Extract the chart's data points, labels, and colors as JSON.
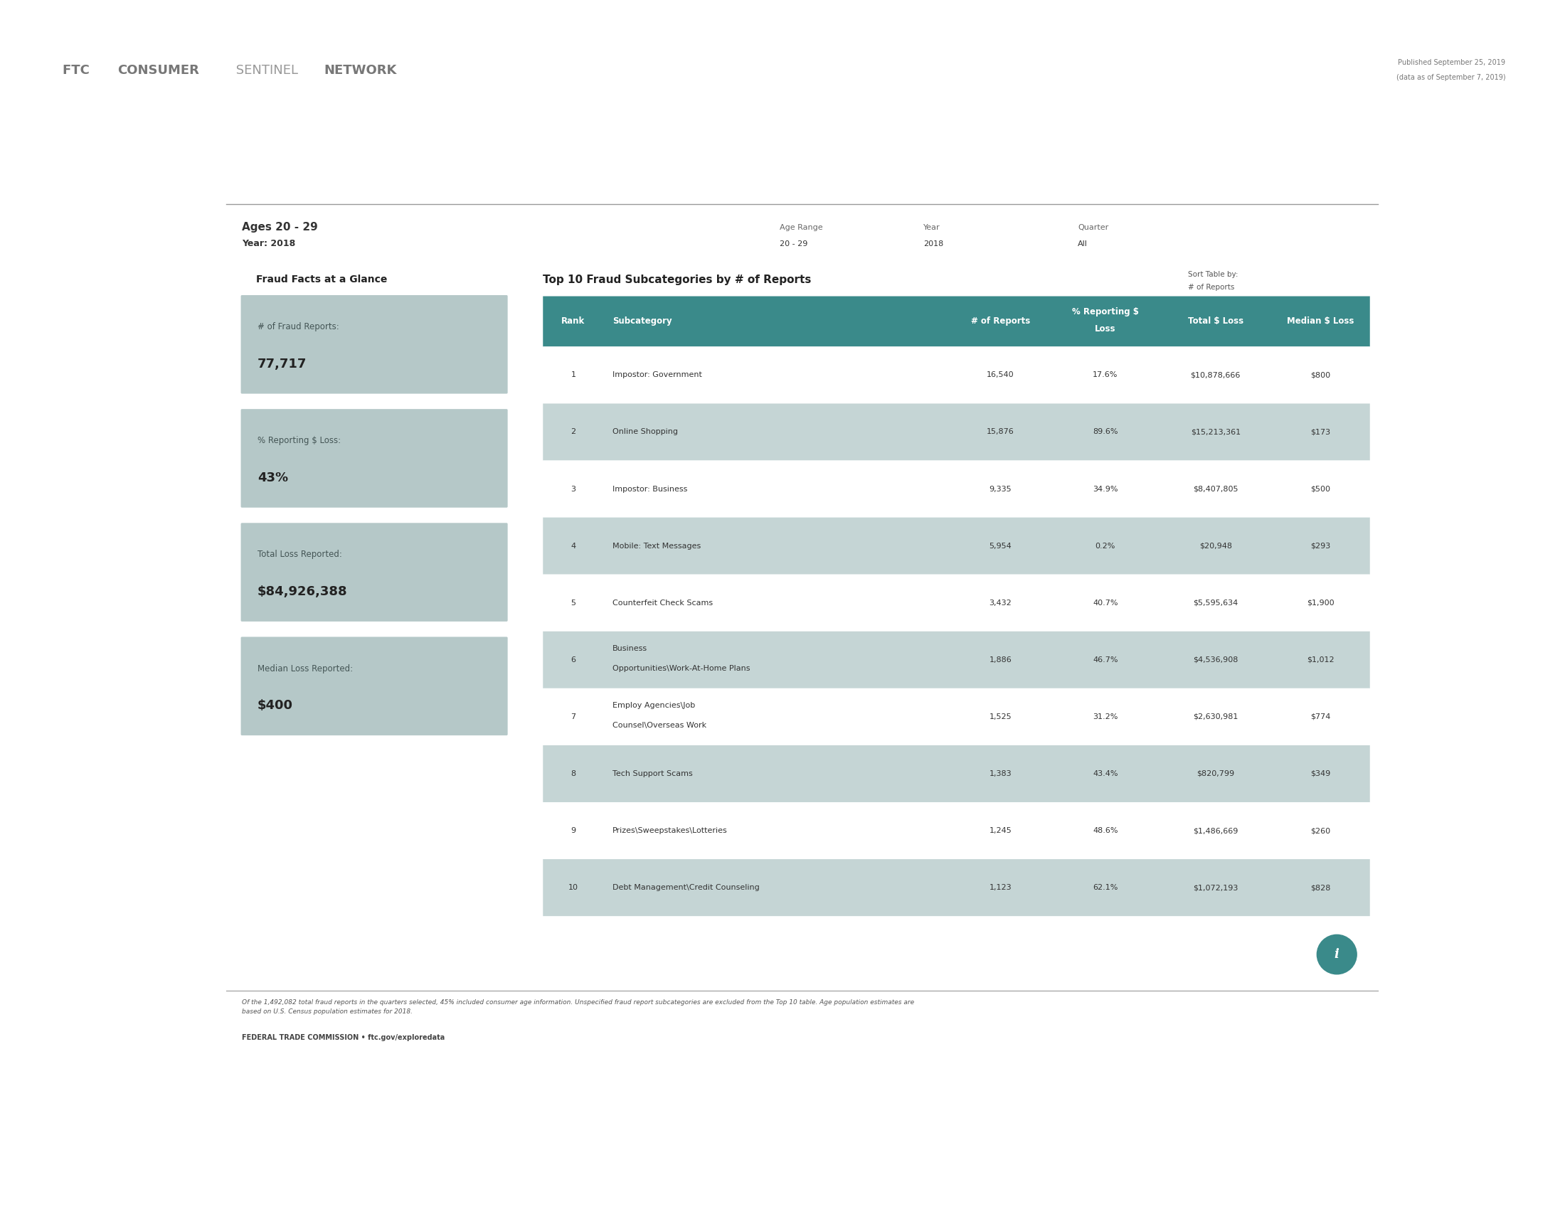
{
  "published_line1": "Published September 25, 2019",
  "published_line2": "(data as of September 7, 2019)",
  "age_range_label": "Ages 20 - 29",
  "year_label": "Year: 2018",
  "filter_labels": [
    "Age Range",
    "Year",
    "Quarter"
  ],
  "filter_values": [
    "20 - 29",
    "2018",
    "All"
  ],
  "left_section_title": "Fraud Facts at a Glance",
  "stat_boxes": [
    {
      "label": "# of Fraud Reports:",
      "value": "77,717"
    },
    {
      "label": "% Reporting $ Loss:",
      "value": "43%"
    },
    {
      "label": "Total Loss Reported:",
      "value": "$84,926,388"
    },
    {
      "label": "Median Loss Reported:",
      "value": "$400"
    }
  ],
  "table_title": "Top 10 Fraud Subcategories by # of Reports",
  "sort_label": "Sort Table by:",
  "sort_value": "# of Reports",
  "table_header_row1": [
    "Rank",
    "Subcategory",
    "# of Reports",
    "% Reporting $",
    "Total $ Loss",
    "Median $ Loss"
  ],
  "table_header_row2": [
    "",
    "",
    "",
    "Loss",
    "",
    ""
  ],
  "table_data": [
    [
      "1",
      "Impostor: Government",
      "16,540",
      "17.6%",
      "$10,878,666",
      "$800"
    ],
    [
      "2",
      "Online Shopping",
      "15,876",
      "89.6%",
      "$15,213,361",
      "$173"
    ],
    [
      "3",
      "Impostor: Business",
      "9,335",
      "34.9%",
      "$8,407,805",
      "$500"
    ],
    [
      "4",
      "Mobile: Text Messages",
      "5,954",
      "0.2%",
      "$20,948",
      "$293"
    ],
    [
      "5",
      "Counterfeit Check Scams",
      "3,432",
      "40.7%",
      "$5,595,634",
      "$1,900"
    ],
    [
      "6",
      "Business\nOpportunities\\Work-At-Home Plans",
      "1,886",
      "46.7%",
      "$4,536,908",
      "$1,012"
    ],
    [
      "7",
      "Employ Agencies\\Job\nCounsel\\Overseas Work",
      "1,525",
      "31.2%",
      "$2,630,981",
      "$774"
    ],
    [
      "8",
      "Tech Support Scams",
      "1,383",
      "43.4%",
      "$820,799",
      "$349"
    ],
    [
      "9",
      "Prizes\\Sweepstakes\\Lotteries",
      "1,245",
      "48.6%",
      "$1,486,669",
      "$260"
    ],
    [
      "10",
      "Debt Management\\Credit Counseling",
      "1,123",
      "62.1%",
      "$1,072,193",
      "$828"
    ]
  ],
  "footer_text": "Of the 1,492,082 total fraud reports in the quarters selected, 45% included consumer age information. Unspecified fraud report subcategories are excluded from the Top 10 table. Age population estimates are\nbased on U.S. Census population estimates for 2018.",
  "footer_credit": "FEDERAL TRADE COMMISSION • ftc.gov/exploredata",
  "header_color": "#3a8a8a",
  "alt_row_color": "#c5d5d5",
  "white_color": "#ffffff",
  "bg_color": "#ffffff",
  "stat_box_color": "#b5c8c8",
  "divider_color": "#999999"
}
